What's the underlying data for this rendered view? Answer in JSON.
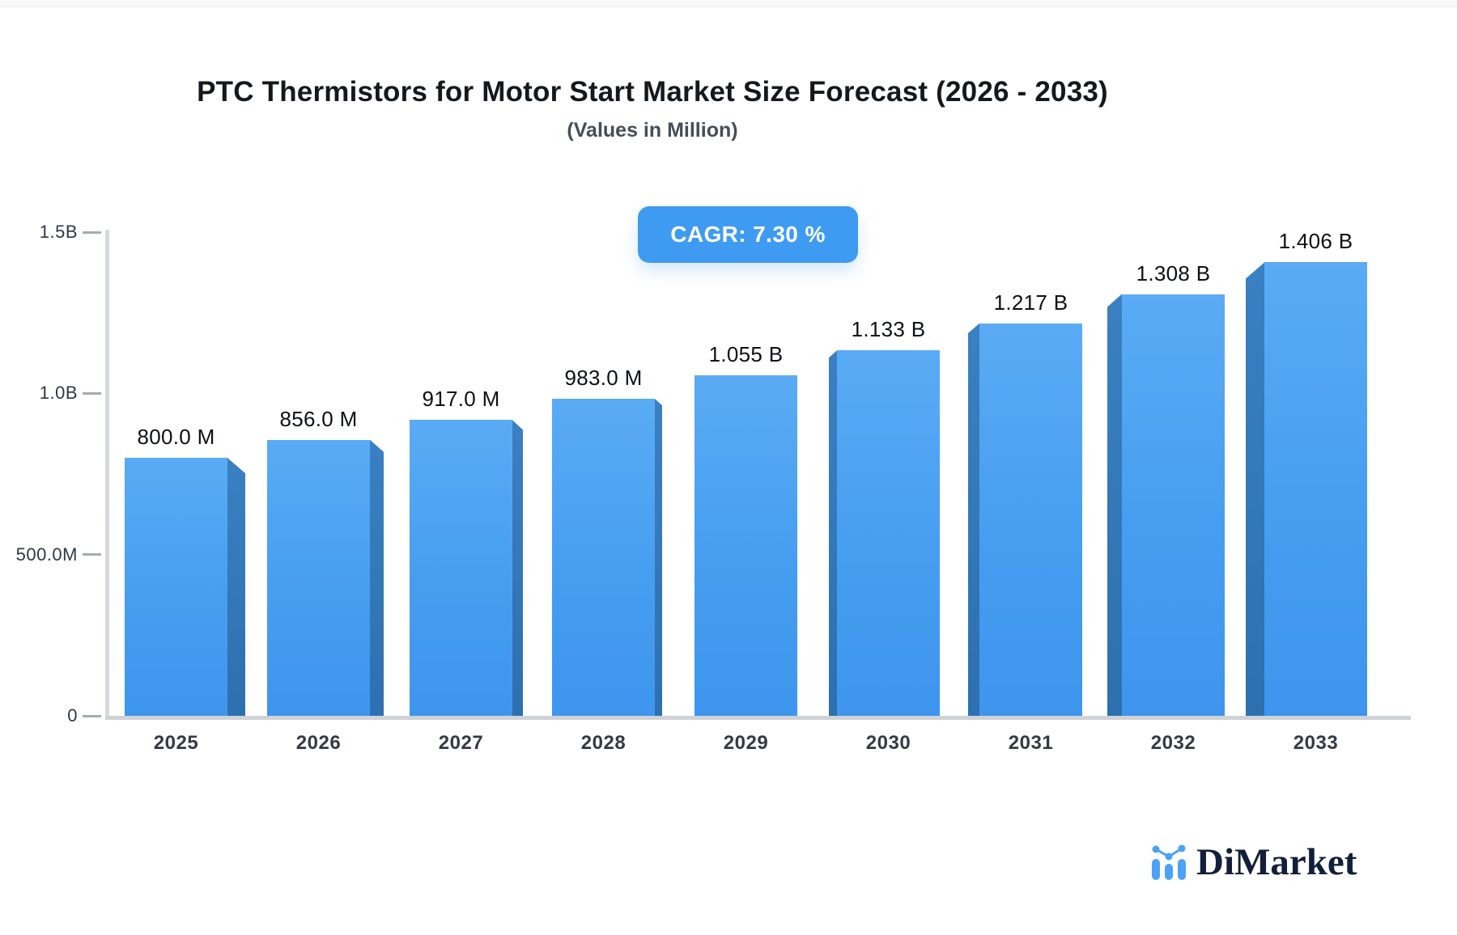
{
  "header": {
    "title": "PTC Thermistors for Motor Start Market Size Forecast (2026 - 2033)",
    "subtitle": "(Values in Million)",
    "cagr_badge": "CAGR: 7.30 %"
  },
  "chart_data": {
    "type": "bar",
    "title": "PTC Thermistors for Motor Start Market Size Forecast (2026 - 2033)",
    "subtitle": "(Values in Million)",
    "cagr_percent": 7.3,
    "categories": [
      "2025",
      "2026",
      "2027",
      "2028",
      "2029",
      "2030",
      "2031",
      "2032",
      "2033"
    ],
    "values_millions": [
      800,
      856,
      917,
      983,
      1055,
      1133,
      1217,
      1308,
      1406
    ],
    "bar_labels": [
      "800.0 M",
      "856.0 M",
      "917.0 M",
      "983.0 M",
      "1.055 B",
      "1.133 B",
      "1.217 B",
      "1.308 B",
      "1.406 B"
    ],
    "ylim_millions": [
      0,
      1500
    ],
    "y_ticks": [
      {
        "label": "1.5B",
        "value_millions": 1500
      },
      {
        "label": "1.0B",
        "value_millions": 1000
      },
      {
        "label": "500.0M",
        "value_millions": 500
      },
      {
        "label": "0",
        "value_millions": 0
      }
    ],
    "grid": false,
    "legend": false,
    "bar_face_color": "#469ef0",
    "bar_side_color": "#2f74b4",
    "badge_color": "#3f9bf1"
  },
  "branding": {
    "logo_text": "DiMarket",
    "logo_icon": "bar-chart-logo-icon",
    "logo_text_color": "#121f3a",
    "logo_accent_color": "#4ba2f7"
  }
}
